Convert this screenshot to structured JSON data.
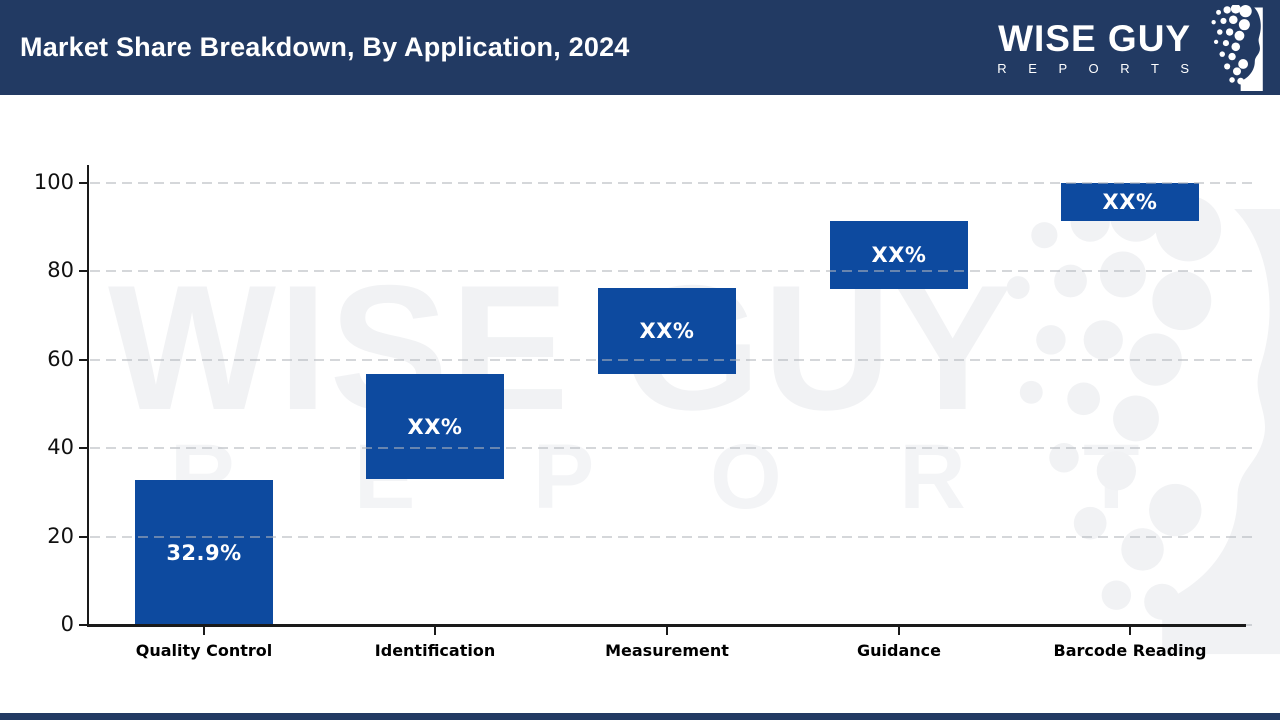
{
  "header": {
    "title": "Market Share Breakdown, By Application, 2024",
    "logo": {
      "name": "WISE GUY",
      "sub": "R E P O R T S"
    }
  },
  "watermark": {
    "line1": "WISE GUY",
    "line2": "R E P O R T S"
  },
  "chart_data": {
    "type": "bar",
    "subtype": "waterfall",
    "title": "Market Share Breakdown, By Application, 2024",
    "categories": [
      "Quality Control",
      "Identification",
      "Measurement",
      "Guidance",
      "Barcode Reading"
    ],
    "values": [
      32.9,
      23.8,
      19.5,
      15.3,
      8.5
    ],
    "cumulative_start": [
      0,
      32.9,
      56.7,
      76.2,
      91.5
    ],
    "cumulative_end": [
      32.9,
      56.7,
      76.2,
      91.5,
      100
    ],
    "bar_labels": [
      "32.9%",
      "XX%",
      "XX%",
      "XX%",
      "XX%"
    ],
    "y_ticks": [
      0,
      20,
      40,
      60,
      80,
      100
    ],
    "ylim": [
      0,
      105
    ],
    "xlabel": "",
    "ylabel": "",
    "grid": "horizontal-dashed",
    "legend": "none",
    "bar_color": "#0d4a9f",
    "bar_label_color": "#ffffff"
  },
  "colors": {
    "header_bg": "#223a63",
    "bar": "#0d4a9f",
    "grid": "#d9d9d9",
    "axis": "#1a1a1a",
    "watermark": "#f1f2f4"
  }
}
